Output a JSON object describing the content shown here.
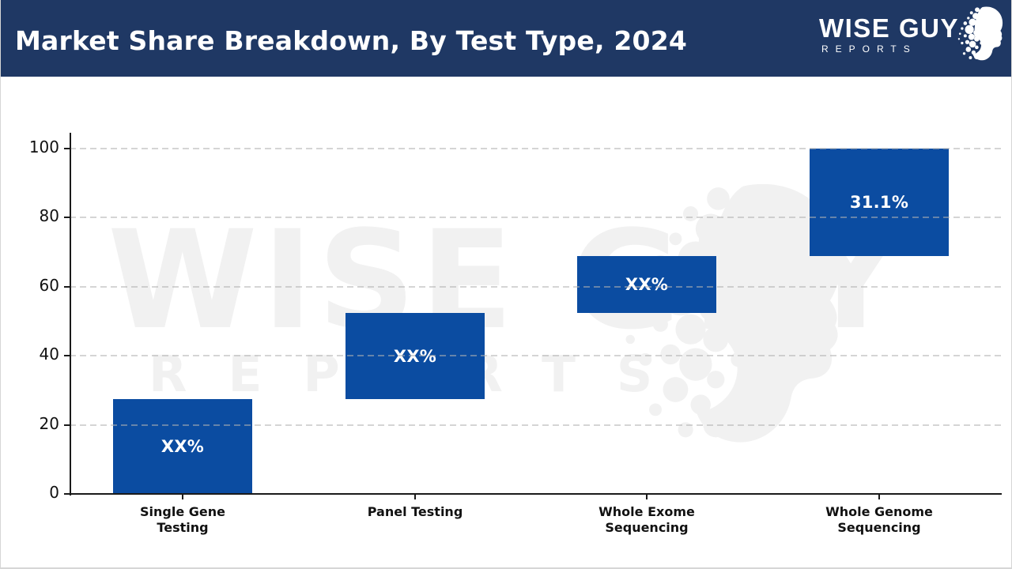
{
  "header": {
    "title": "Market Share Breakdown, By Test Type, 2024"
  },
  "brand": {
    "name": "WISE GUY",
    "subtext": "REPORTS"
  },
  "watermark": {
    "line1": "WISE GUY",
    "line2": "REPORTS"
  },
  "colors": {
    "header_bg": "#1f3864",
    "bar": "#0b4ca1",
    "grid": "#d9d9d9",
    "axis": "#1a1a1a",
    "watermark": "#f1f1f1",
    "bar_label": "#ffffff",
    "title_text": "#ffffff"
  },
  "chart_data": {
    "type": "bar",
    "subtype": "waterfall",
    "title": "Market Share Breakdown, By Test Type, 2024",
    "xlabel": "",
    "ylabel": "",
    "categories": [
      "Single Gene Testing",
      "Panel Testing",
      "Whole Exome Sequencing",
      "Whole Genome Sequencing"
    ],
    "category_lines": [
      [
        "Single Gene",
        "Testing"
      ],
      [
        "Panel Testing"
      ],
      [
        "Whole Exome",
        "Sequencing"
      ],
      [
        "Whole Genome",
        "Sequencing"
      ]
    ],
    "segments": [
      {
        "category": "Single Gene Testing",
        "start": 0,
        "end": 27.4,
        "label": "XX%"
      },
      {
        "category": "Panel Testing",
        "start": 27.4,
        "end": 52.3,
        "label": "XX%"
      },
      {
        "category": "Whole Exome Sequencing",
        "start": 52.3,
        "end": 68.9,
        "label": "XX%"
      },
      {
        "category": "Whole Genome Sequencing",
        "start": 68.9,
        "end": 100,
        "label": "31.1%"
      }
    ],
    "y_ticks": [
      0,
      20,
      40,
      60,
      80,
      100
    ],
    "ylim": [
      0,
      104.5
    ],
    "grid": "dashed horizontal, drawn over bars",
    "legend": "none"
  }
}
